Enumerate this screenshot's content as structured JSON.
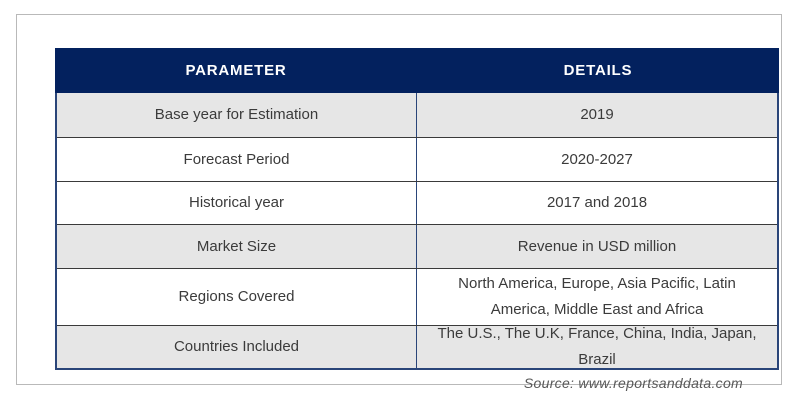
{
  "chart_data": {
    "type": "table",
    "title": "",
    "columns": [
      "PARAMETER",
      "DETAILS"
    ],
    "rows": [
      [
        "Base year for Estimation",
        "2019"
      ],
      [
        "Forecast Period",
        "2020-2027"
      ],
      [
        "Historical year",
        "2017 and 2018"
      ],
      [
        "Market Size",
        "Revenue in USD million"
      ],
      [
        "Regions Covered",
        "North America, Europe, Asia Pacific, Latin America, Middle East and Africa"
      ],
      [
        "Countries Included",
        "The U.S., The  U.K, France, China, India, Japan, Brazil"
      ]
    ],
    "source": "Source: www.reportsanddata.com"
  },
  "table": {
    "headers": [
      "PARAMETER",
      "DETAILS"
    ],
    "rows": [
      {
        "parameter": "Base year for Estimation",
        "details": "2019"
      },
      {
        "parameter": "Forecast Period",
        "details": "2020-2027"
      },
      {
        "parameter": "Historical year",
        "details": "2017 and 2018"
      },
      {
        "parameter": "Market Size",
        "details": "Revenue in USD million"
      },
      {
        "parameter": "Regions Covered",
        "details": "North America, Europe, Asia Pacific, Latin America, Middle East and Africa"
      },
      {
        "parameter": "Countries Included",
        "details": "The U.S., The  U.K, France, China, India, Japan, Brazil"
      }
    ],
    "colors": {
      "header_bg": "#03215e",
      "header_text": "#ffffff",
      "row_shaded_bg": "#e6e6e6",
      "row_plain_bg": "#ffffff",
      "cell_text": "#3b3b3b",
      "table_border": "#2a4579",
      "row_separator": "#3a3a3a",
      "frame_border": "#b9b9b9",
      "source_text": "#585858"
    }
  },
  "page": {
    "source_label": "Source: www.reportsanddata.com"
  }
}
